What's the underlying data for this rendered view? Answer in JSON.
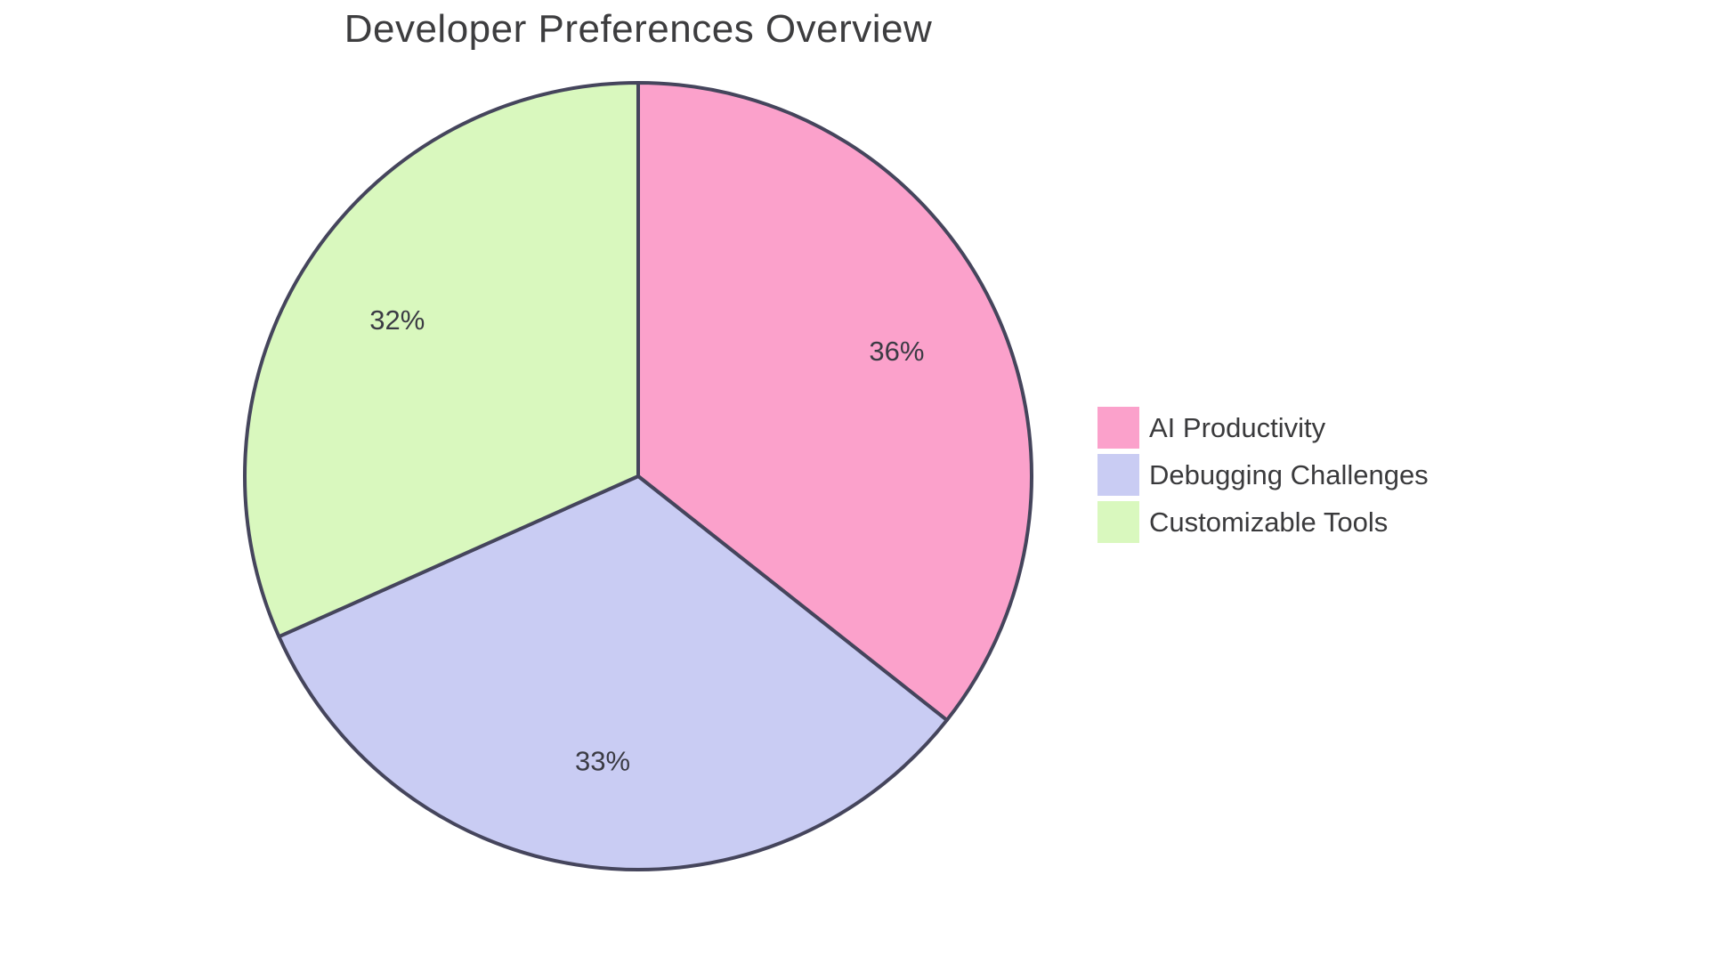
{
  "chart_data": {
    "type": "pie",
    "title": "Developer Preferences Overview",
    "series": [
      {
        "name": "AI Productivity",
        "value": 36,
        "percent_label": "36%",
        "color": "#FBA1CB"
      },
      {
        "name": "Debugging Challenges",
        "value": 33,
        "percent_label": "33%",
        "color": "#C9CCF3"
      },
      {
        "name": "Customizable Tools",
        "value": 32,
        "percent_label": "32%",
        "color": "#D9F8BE"
      }
    ],
    "start_angle": "top",
    "direction": "clockwise",
    "border_color": "#45455C",
    "label_color": "#3B3B44",
    "title_color": "#3D3D3F",
    "background_color": "#FFFFFF",
    "legend_position": "right"
  }
}
